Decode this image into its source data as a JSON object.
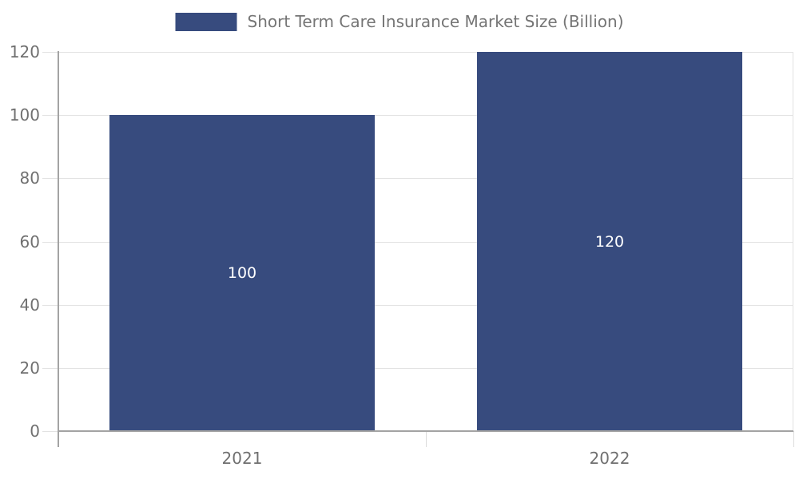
{
  "chart_data": {
    "type": "bar",
    "title": "",
    "legend": {
      "label": "Short Term Care Insurance Market Size (Billion)",
      "position": "top"
    },
    "categories": [
      "2021",
      "2022"
    ],
    "series": [
      {
        "name": "Short Term Care Insurance Market Size (Billion)",
        "values": [
          100,
          120
        ]
      }
    ],
    "value_labels": [
      "100",
      "120"
    ],
    "xlabel": "",
    "ylabel": "",
    "ylim": [
      0,
      120
    ],
    "yticks": [
      0,
      20,
      40,
      60,
      80,
      100,
      120
    ],
    "grid": true,
    "colors": {
      "bar": "#374b7e",
      "gridline": "#e2e2e2",
      "axis_line": "#a3a3a3",
      "tick": "#dcdcdc",
      "axis_text": "#707070",
      "legend_text": "#757575",
      "value_label_text": "#ffffff",
      "background": "#ffffff"
    }
  }
}
